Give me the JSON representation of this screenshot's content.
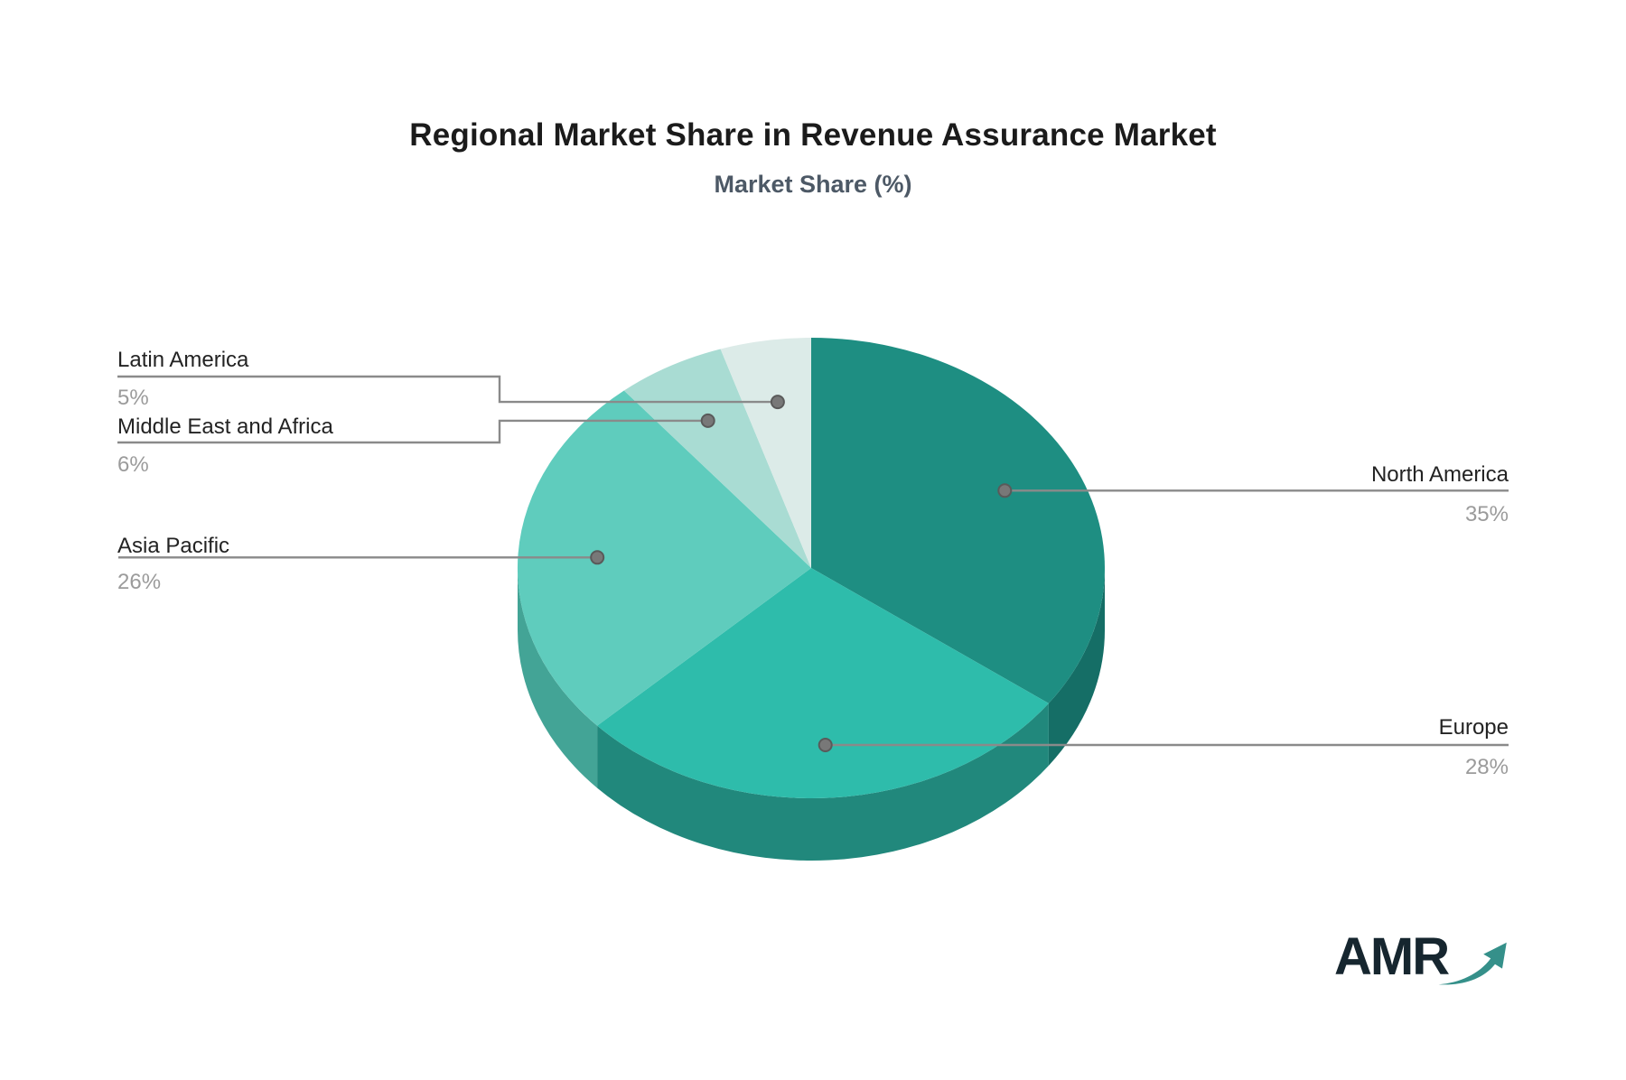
{
  "title": "Regional Market Share in Revenue Assurance Market",
  "subtitle": "Market Share (%)",
  "logo": {
    "text": "AMR"
  },
  "chart_data": {
    "type": "pie",
    "style": "3d-pie",
    "title": "Regional Market Share in Revenue Assurance Market",
    "subtitle": "Market Share (%)",
    "unit": "percent",
    "start_angle_deg": 0,
    "direction": "clockwise",
    "legend_position": "callout-labels",
    "slices": [
      {
        "label": "North America",
        "value": 35,
        "pct_label": "35%",
        "color": "#1E8E82",
        "side_color": "#156E66",
        "label_side": "right"
      },
      {
        "label": "Europe",
        "value": 28,
        "pct_label": "28%",
        "color": "#2EBCAB",
        "side_color": "#21887C",
        "label_side": "right"
      },
      {
        "label": "Asia Pacific",
        "value": 26,
        "pct_label": "26%",
        "color": "#5FCCBD",
        "side_color": "#43A496",
        "label_side": "left"
      },
      {
        "label": "Middle East and Africa",
        "value": 6,
        "pct_label": "6%",
        "color": "#A9DCD3",
        "side_color": "#8FC4BB",
        "label_side": "left"
      },
      {
        "label": "Latin America",
        "value": 5,
        "pct_label": "5%",
        "color": "#DCEBE8",
        "side_color": "#C2D8D4",
        "label_side": "left"
      }
    ],
    "colors": {
      "leader_line": "#8A8A8A",
      "dot": "#787878",
      "dot_edge": "#5A5A5A",
      "label_text": "#232323",
      "pct_text": "#9B9B9B",
      "title_text": "#1B1B1B",
      "subtitle_text": "#4D5966",
      "logo_text": "#16262F",
      "logo_arrow": "#35908A",
      "background": "#FFFFFF"
    }
  }
}
